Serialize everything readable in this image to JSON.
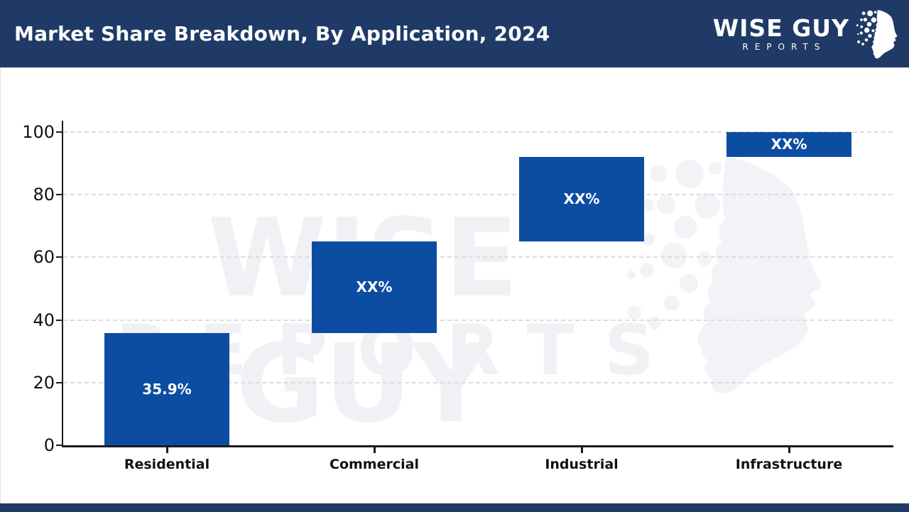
{
  "header": {
    "title": "Market Share Breakdown, By Application, 2024",
    "brand": {
      "line1": "WISE GUY",
      "line2": "REPORTS"
    }
  },
  "watermark": {
    "line1": "WISE GUY",
    "line2": "REPORTS"
  },
  "colors": {
    "header_navy": "#1f3a66",
    "bar_blue": "#0c4da2",
    "bar_label_white": "#ffffff",
    "gridline_gray": "#dcdcdc",
    "axis_black": "#1a1a1a",
    "watermark_gray": "#f0f1f4"
  },
  "chart_data": {
    "type": "bar",
    "subtype": "stacked-waterfall-percent",
    "title": "Market Share Breakdown, By Application, 2024",
    "categories": [
      "Residential",
      "Commercial",
      "Industrial",
      "Infrastructure"
    ],
    "segments": [
      {
        "category": "Residential",
        "start": 0,
        "end": 35.9,
        "label": "35.9%"
      },
      {
        "category": "Commercial",
        "start": 35.9,
        "end": 65.1,
        "label": "XX%"
      },
      {
        "category": "Industrial",
        "start": 65.1,
        "end": 92.1,
        "label": "XX%"
      },
      {
        "category": "Infrastructure",
        "start": 92.1,
        "end": 100,
        "label": "XX%"
      }
    ],
    "yticks": [
      0,
      20,
      40,
      60,
      80,
      100
    ],
    "ylim": [
      0,
      100
    ],
    "xlabel": "",
    "ylabel": "",
    "grid": "horizontal-dashed",
    "legend": "none"
  }
}
